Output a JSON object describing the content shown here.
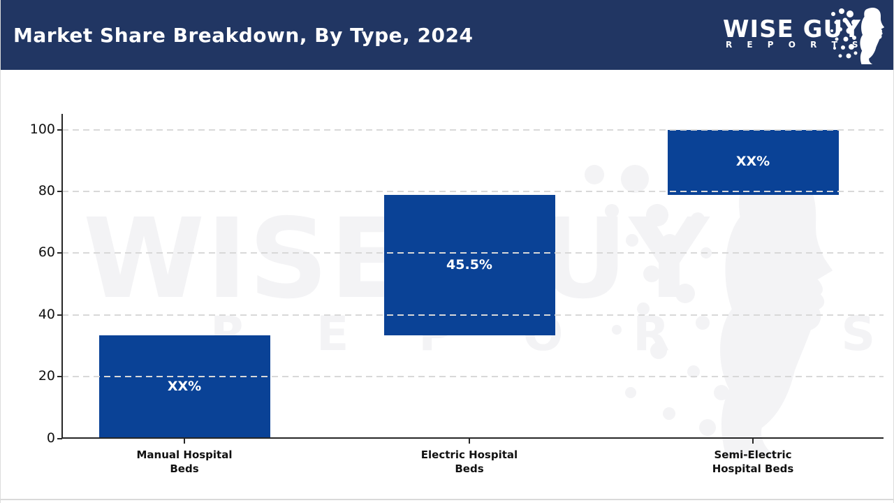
{
  "header": {
    "title": "Market Share Breakdown, By Type, 2024",
    "logo": {
      "name": "WISE GUY",
      "sub": "R E P O R T S"
    }
  },
  "watermark": {
    "text_main": "WISE GUY",
    "text_sub": "R E P O R T S"
  },
  "chart_data": {
    "type": "bar",
    "subtype": "stepped-waterfall",
    "title": "Market Share Breakdown, By Type, 2024",
    "categories": [
      "Manual Hospital Beds",
      "Electric Hospital Beds",
      "Semi-Electric Hospital Beds"
    ],
    "bar_labels": [
      "XX%",
      "45.5%",
      "XX%"
    ],
    "segments": [
      {
        "start": 0,
        "end": 33.3
      },
      {
        "start": 33.3,
        "end": 78.8
      },
      {
        "start": 78.8,
        "end": 100
      }
    ],
    "values_estimated": [
      33.3,
      45.5,
      21.2
    ],
    "ylim": [
      0,
      100
    ],
    "yticks": [
      0,
      20,
      40,
      60,
      80,
      100
    ],
    "xlabel": "",
    "ylabel": "",
    "grid": "horizontal-dashed",
    "legend": "none",
    "bar_color": "#0a4296"
  },
  "colors": {
    "header_bg": "#213663",
    "bar": "#0a4296",
    "grid": "#d8d8d8",
    "axis": "#262626",
    "watermark": "#f3f3f5",
    "bar_label_text": "#ffffff",
    "title_text": "#ffffff"
  }
}
